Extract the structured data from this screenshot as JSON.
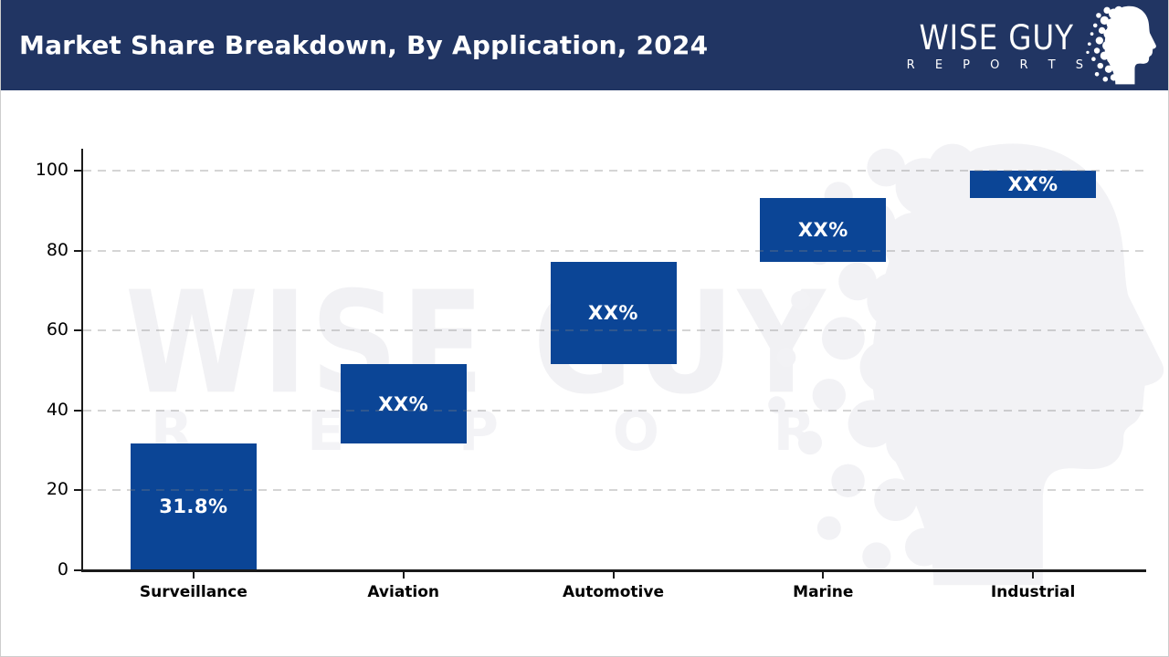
{
  "header": {
    "title": "Market Share Breakdown, By Application, 2024",
    "logo_line1": "WISE GUY",
    "logo_line2": "R E P O R T S"
  },
  "watermark": {
    "line1": "WISE GUY",
    "line2": "R E P O R T S"
  },
  "chart_data": {
    "type": "bar",
    "subtype": "floating-waterfall",
    "title": "Market Share Breakdown, By Application, 2024",
    "categories": [
      "Surveillance",
      "Aviation",
      "Automotive",
      "Marine",
      "Industrial"
    ],
    "bars": [
      {
        "category": "Surveillance",
        "start": 0,
        "end": 31.8,
        "value": 31.8,
        "label": "31.8%"
      },
      {
        "category": "Aviation",
        "start": 31.8,
        "end": 51.5,
        "value": 19.7,
        "label": "XX%"
      },
      {
        "category": "Automotive",
        "start": 51.5,
        "end": 77.2,
        "value": 25.7,
        "label": "XX%"
      },
      {
        "category": "Marine",
        "start": 77.2,
        "end": 93.1,
        "value": 15.9,
        "label": "XX%"
      },
      {
        "category": "Industrial",
        "start": 93.1,
        "end": 100,
        "value": 6.9,
        "label": "XX%"
      }
    ],
    "xlabel": "",
    "ylabel": "",
    "yticks": [
      0,
      20,
      40,
      60,
      80,
      100
    ],
    "ylim": [
      0,
      105
    ],
    "grid": "horizontal-dashed",
    "legend": "none",
    "bar_color": "#0b4596",
    "colors": {
      "header_bg": "#213563",
      "grid": "#e8e8e8",
      "axis": "#1a1a1a",
      "bar_label_text": "#ffffff"
    }
  }
}
